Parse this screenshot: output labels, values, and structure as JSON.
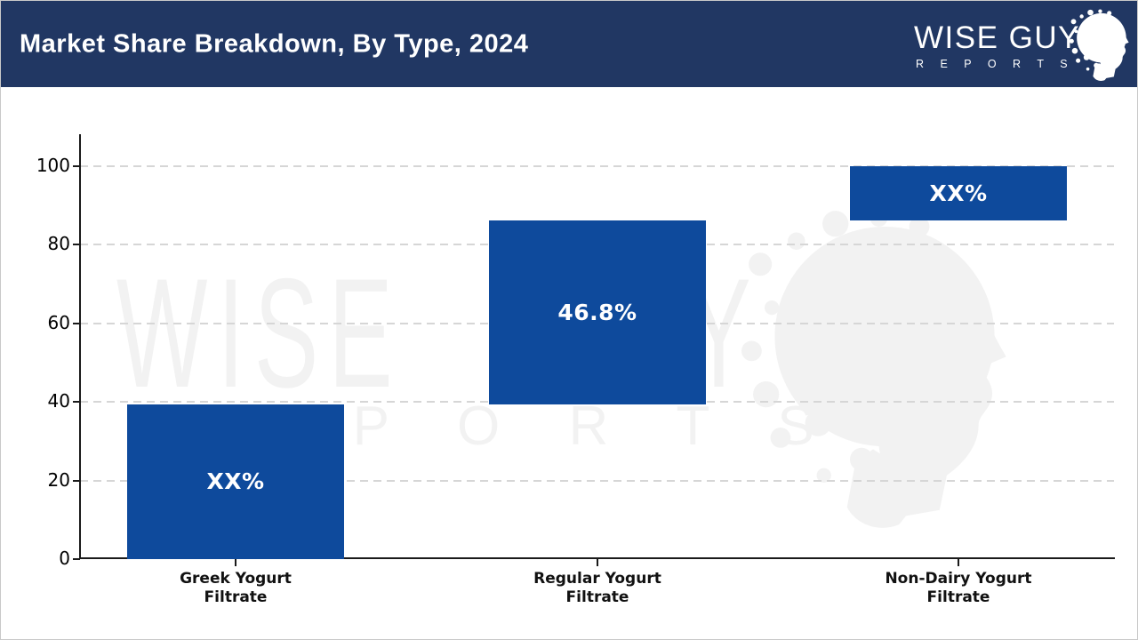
{
  "header": {
    "title": "Market Share Breakdown, By Type, 2024",
    "logo": {
      "name": "WISE GUY",
      "sub": "R E P O R T S"
    }
  },
  "watermark": {
    "big": "WISE GUY",
    "sub": "R E P O R T S"
  },
  "colors": {
    "header_bg": "#213763",
    "bar": "#0e4a9c",
    "grid": "#d6d6d6",
    "axis": "#1a1a1a",
    "watermark": "#f2f2f2",
    "bar_label": "#ffffff"
  },
  "chart_data": {
    "type": "bar",
    "subtype": "stacked_waterfall",
    "title": "Market Share Breakdown, By Type, 2024",
    "categories": [
      "Greek Yogurt\nFiltrate",
      "Regular Yogurt\nFiltrate",
      "Non-Dairy Yogurt\nFiltrate"
    ],
    "series": [
      {
        "name": "Market Share (%)",
        "segment_start": [
          0,
          39.4,
          86.2
        ],
        "values": [
          39.4,
          46.8,
          13.8
        ],
        "bar_labels": [
          "XX%",
          "46.8%",
          "XX%"
        ]
      }
    ],
    "xlabel": "",
    "ylabel": "",
    "ylim": [
      0,
      100
    ],
    "yticks": [
      0,
      20,
      40,
      60,
      80,
      100
    ],
    "grid": "horizontal-dashed",
    "legend": "none",
    "bar_color": "#0e4a9c"
  }
}
